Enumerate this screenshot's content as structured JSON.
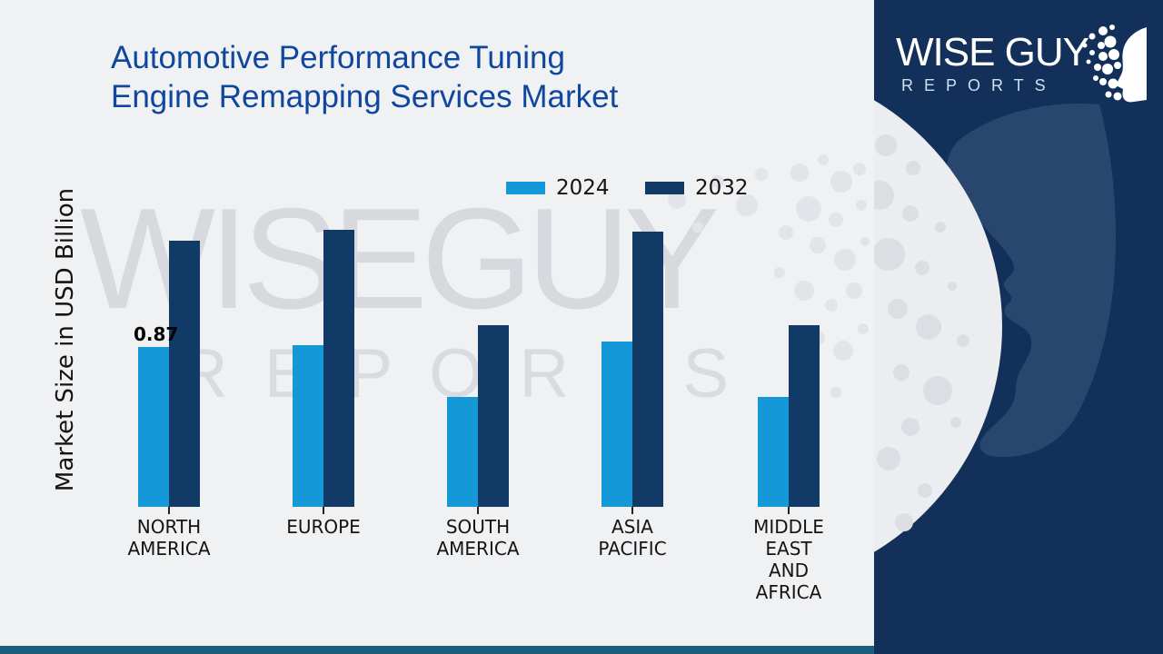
{
  "title": {
    "lines": [
      "Automotive Performance Tuning",
      "Engine Remapping Services Market"
    ],
    "color": "#10479e"
  },
  "watermark": {
    "line1": "WISEGUY",
    "line2": "REPORTS"
  },
  "logo": {
    "title": "WISE GUY",
    "subtitle": "REPORTS",
    "icon": "dotted-face-profile"
  },
  "colors": {
    "background": "#f0f1f3",
    "panel_navy": "#13305a",
    "bar_2024": "#1598d8",
    "bar_2032": "#123a66",
    "footer_teal": "#1b5f7e",
    "title_blue": "#10479e",
    "watermark_gray": "#d7d9df"
  },
  "chart_data": {
    "type": "bar",
    "title": "Automotive Performance Tuning Engine Remapping Services Market",
    "ylabel": "Market Size in USD Billion",
    "xlabel": "",
    "categories": [
      "NORTH AMERICA",
      "EUROPE",
      "SOUTH AMERICA",
      "ASIA PACIFIC",
      "MIDDLE EAST AND AFRICA"
    ],
    "category_lines": [
      [
        "NORTH",
        "AMERICA"
      ],
      [
        "EUROPE"
      ],
      [
        "SOUTH",
        "AMERICA"
      ],
      [
        "ASIA",
        "PACIFIC"
      ],
      [
        "MIDDLE",
        "EAST",
        "AND",
        "AFRICA"
      ]
    ],
    "series": [
      {
        "name": "2024",
        "color": "#1598d8",
        "values": [
          0.87,
          0.88,
          0.6,
          0.9,
          0.6
        ]
      },
      {
        "name": "2032",
        "color": "#123a66",
        "values": [
          1.45,
          1.51,
          0.99,
          1.5,
          0.99
        ]
      }
    ],
    "ylim": [
      0,
      1.75
    ],
    "grid": false,
    "axis_line": false,
    "legend_position": "top",
    "data_labels": [
      {
        "category_index": 0,
        "series_index": 0,
        "text": "0.87"
      }
    ]
  }
}
